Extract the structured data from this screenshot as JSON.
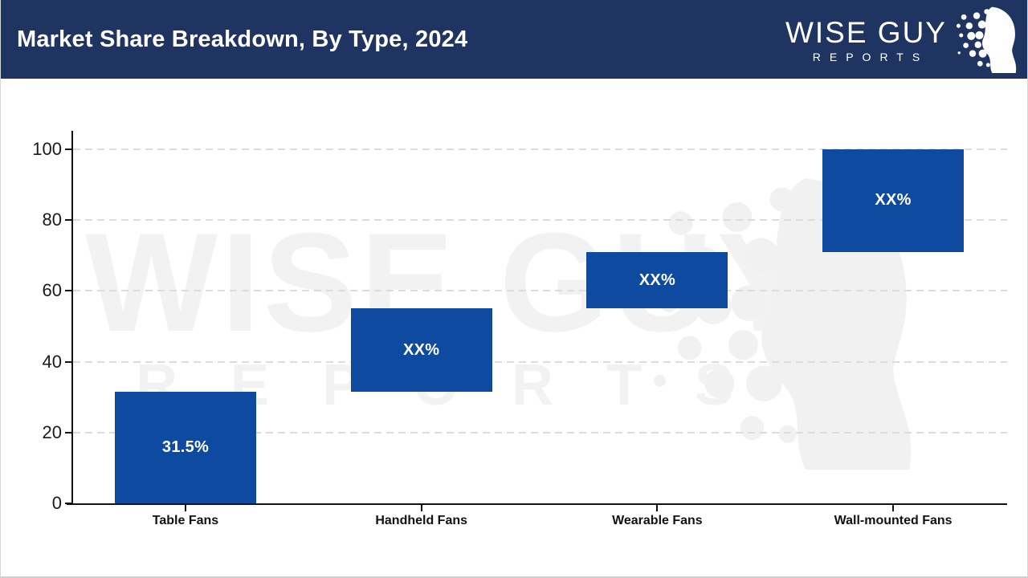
{
  "header": {
    "title": "Market Share Breakdown, By Type, 2024",
    "logo": {
      "line1": "WISE GUY",
      "line2": "REPORTS"
    }
  },
  "watermark": {
    "line1": "WISE GUY",
    "line2": "REPORTS"
  },
  "colors": {
    "header_navy": "#203462",
    "bar_blue": "#0d4aa0",
    "bar_label_white": "#ffffff",
    "axis_black": "#111111",
    "gridline_gray": "#dcdcdc",
    "watermark_gray": "#f2f2f2"
  },
  "chart_data": {
    "type": "bar",
    "subtype": "waterfall",
    "title": "Market Share Breakdown, By Type, 2024",
    "categories": [
      "Table Fans",
      "Handheld Fans",
      "Wearable Fans",
      "Wall-mounted Fans"
    ],
    "bars": [
      {
        "category": "Table Fans",
        "start": 0,
        "end": 31.5,
        "label": "31.5%"
      },
      {
        "category": "Handheld Fans",
        "start": 31.5,
        "end": 55,
        "label": "XX%"
      },
      {
        "category": "Wearable Fans",
        "start": 55,
        "end": 71,
        "label": "XX%"
      },
      {
        "category": "Wall-mounted Fans",
        "start": 71,
        "end": 100,
        "label": "XX%"
      }
    ],
    "ylim": [
      0,
      100
    ],
    "yticks": [
      0,
      20,
      40,
      60,
      80,
      100
    ],
    "xlabel": "",
    "ylabel": "",
    "grid": "horizontal-dashed",
    "legend": "none",
    "bar_color": "#0d4aa0",
    "bar_label_color": "#ffffff"
  }
}
